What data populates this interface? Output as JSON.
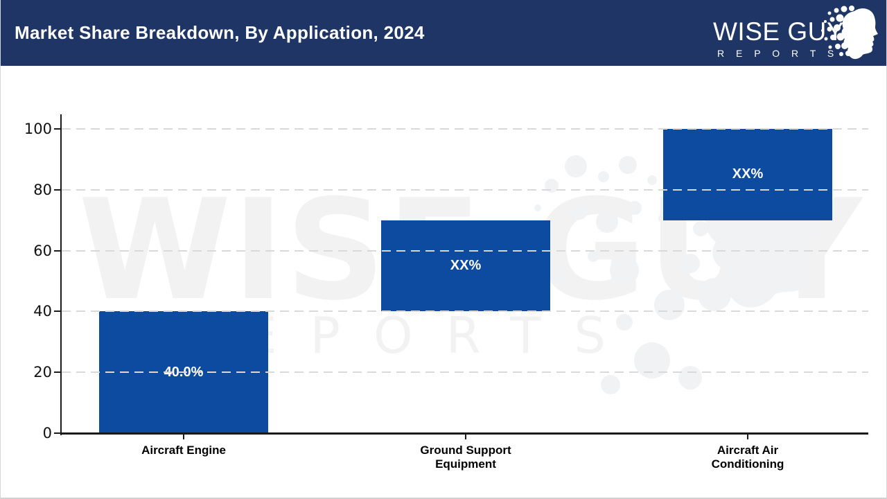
{
  "header": {
    "title": "Market Share Breakdown, By Application, 2024",
    "logo": {
      "line1": "WISE GUY",
      "line2": "R E P O R T S"
    }
  },
  "watermark": {
    "line1": "WISE GUY",
    "line2": "REPORTS"
  },
  "chart_data": {
    "type": "bar",
    "subtype": "waterfall",
    "title": "Market Share Breakdown, By Application, 2024",
    "categories": [
      "Aircraft Engine",
      "Ground Support\nEquipment",
      "Aircraft Air\nConditioning"
    ],
    "segments": [
      {
        "category": "Aircraft Engine",
        "start": 0,
        "end": 40,
        "label": "40.0%"
      },
      {
        "category": "Ground Support Equipment",
        "start": 40,
        "end": 70,
        "label": "XX%"
      },
      {
        "category": "Aircraft Air Conditioning",
        "start": 70,
        "end": 100,
        "label": "XX%"
      }
    ],
    "ylim": [
      0,
      100
    ],
    "yticks": [
      0,
      20,
      40,
      60,
      80,
      100
    ],
    "grid": "horizontal-dashed",
    "legend": "none"
  },
  "colors": {
    "header_bg": "#1e3565",
    "bar": "#0d4ba1",
    "grid": "#d9d9d9",
    "axis": "#1a1a1a",
    "watermark": "#f1f2f4",
    "title_text": "#ffffff"
  }
}
